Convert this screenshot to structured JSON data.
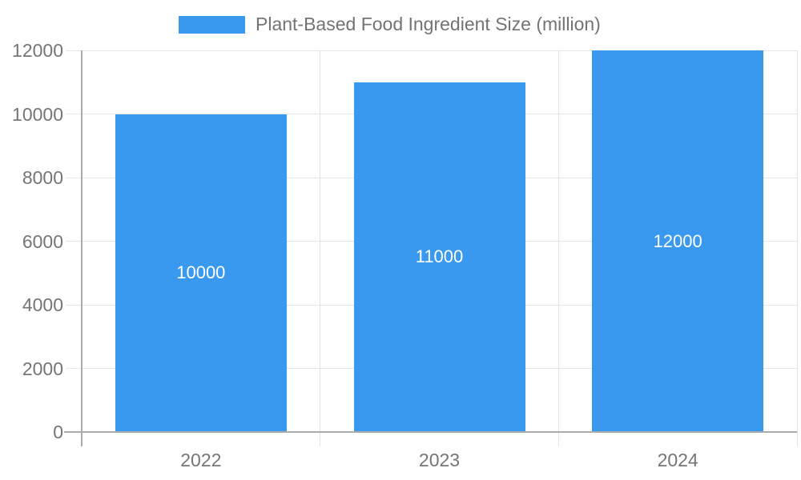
{
  "legend": {
    "label": "Plant-Based Food Ingredient Size (million)"
  },
  "chart_data": {
    "type": "bar",
    "title": "",
    "categories": [
      "2022",
      "2023",
      "2024"
    ],
    "series": [
      {
        "name": "Plant-Based Food Ingredient Size (million)",
        "values": [
          10000,
          11000,
          12000
        ]
      }
    ],
    "bar_value_labels": [
      "10000",
      "11000",
      "12000"
    ],
    "xlabel": "",
    "ylabel": "",
    "ylim": [
      0,
      12000
    ],
    "yticks": [
      0,
      2000,
      4000,
      6000,
      8000,
      10000,
      12000
    ],
    "ytick_labels": [
      "0",
      "2000",
      "4000",
      "6000",
      "8000",
      "10000",
      "12000"
    ],
    "grid": true,
    "legend_position": "top",
    "colors": {
      "bar": "#3999ee",
      "axis_label": "#757575",
      "value_label": "#ffffff",
      "legend_text": "#737373"
    }
  }
}
